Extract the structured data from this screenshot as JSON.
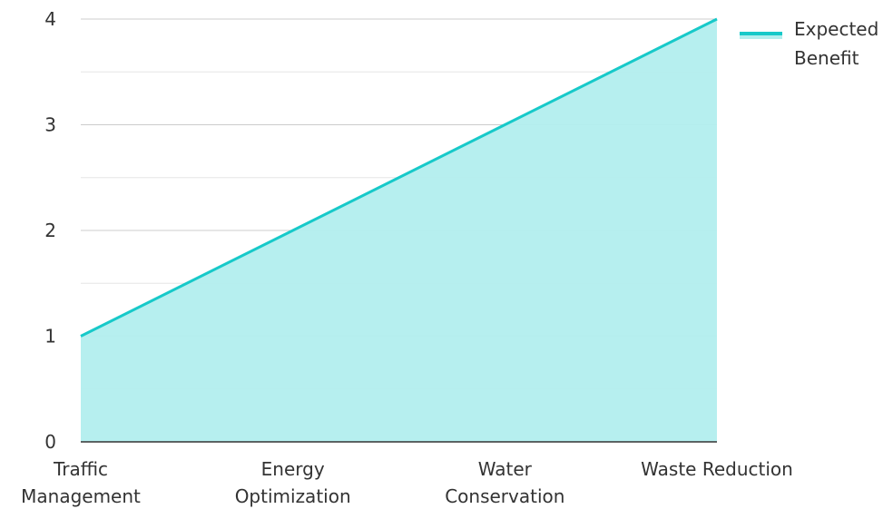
{
  "chart_data": {
    "type": "area",
    "categories": [
      [
        "Traffic",
        "Management"
      ],
      [
        "Energy",
        "Optimization"
      ],
      [
        "Water",
        "Conservation"
      ],
      [
        "Waste Reduction"
      ]
    ],
    "series": [
      {
        "name": "Expected Benefit",
        "legend_lines": [
          "Expected",
          "Benefit"
        ],
        "values": [
          1,
          2,
          3,
          4
        ],
        "color": "#17c9c9",
        "fill": "#b2eeee"
      }
    ],
    "ylim": [
      0,
      4
    ],
    "yticks": [
      "0",
      "1",
      "2",
      "3",
      "4"
    ],
    "grid": true,
    "legend_position": "top-right"
  }
}
